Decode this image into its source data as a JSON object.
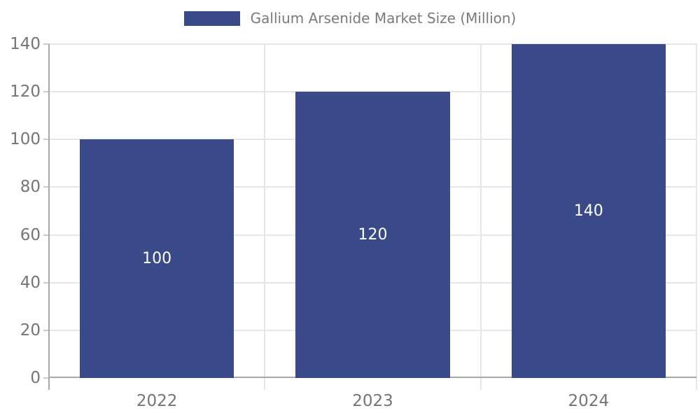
{
  "chart_data": {
    "type": "bar",
    "title": "Gallium Arsenide Market Size (Million)",
    "categories": [
      "2022",
      "2023",
      "2024"
    ],
    "values": [
      100,
      120,
      140
    ],
    "bar_labels": [
      "100",
      "120",
      "140"
    ],
    "series": [
      {
        "name": "Gallium Arsenide Market Size (Million)",
        "values": [
          100,
          120,
          140
        ]
      }
    ],
    "xlabel": "",
    "ylabel": "",
    "ylim": [
      0,
      140
    ],
    "yticks": [
      0,
      20,
      40,
      60,
      80,
      100,
      120,
      140
    ],
    "grid": true,
    "legend_position": "top-center"
  },
  "colors": {
    "bar": "#3a4a88",
    "bar_label": "#ffffff",
    "gridline": "#e6e6e6",
    "axis_line": "#a8a8a8",
    "tick_mark": "#cccccc",
    "tick_text": "#757575",
    "legend_text": "#7a7a7a",
    "background": "#ffffff"
  }
}
